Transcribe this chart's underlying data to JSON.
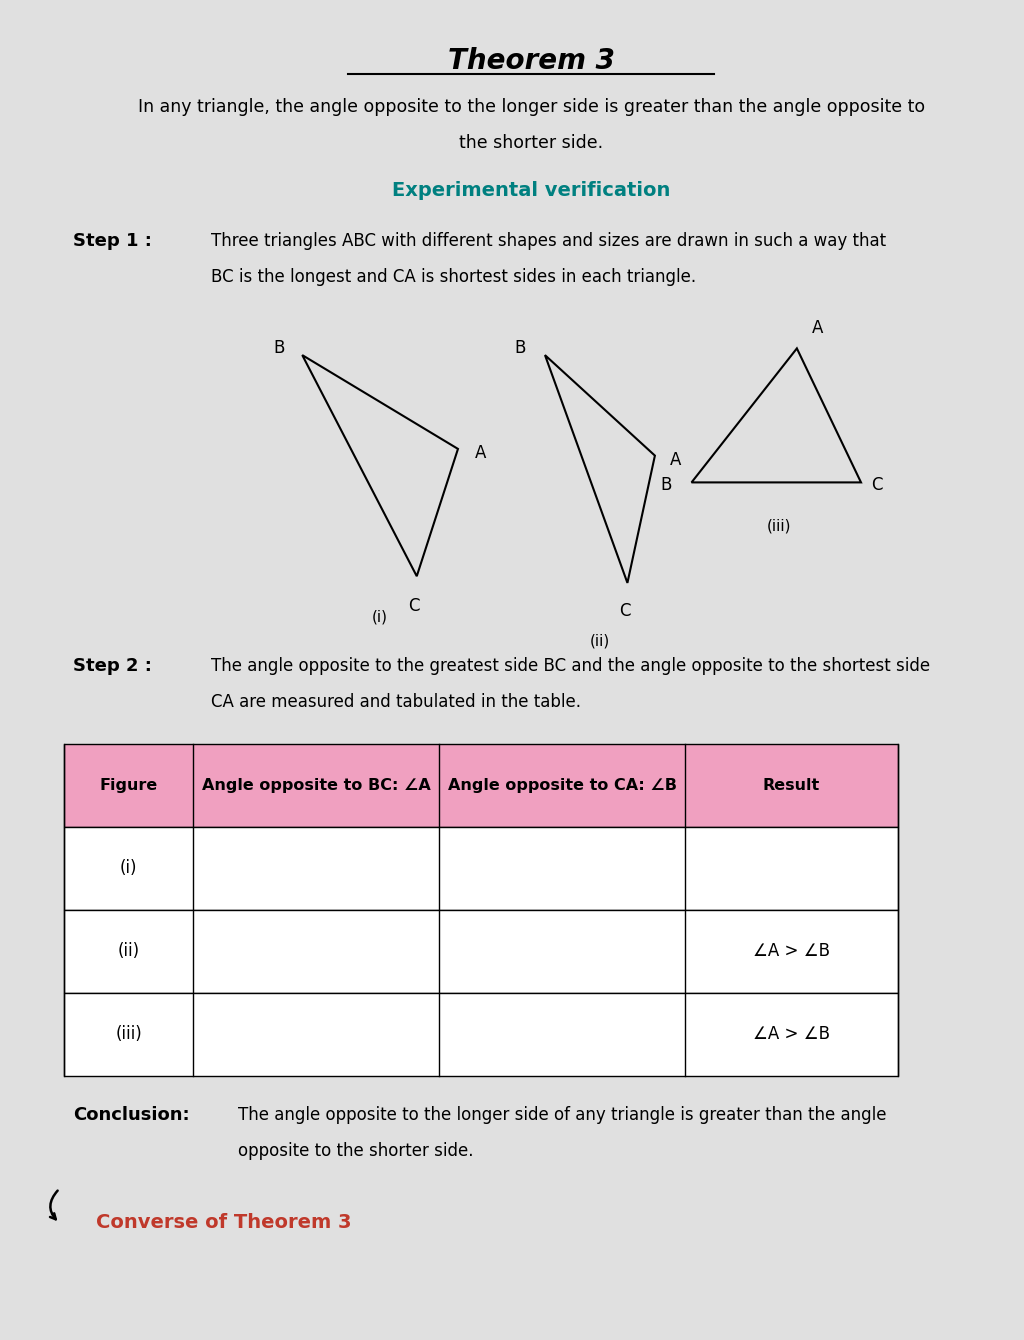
{
  "title": "Theorem 3",
  "theorem_text_line1": "In any triangle, the angle opposite to the longer side is greater than the angle opposite to",
  "theorem_text_line2": "the shorter side.",
  "exp_verification_label": "Experimental verification",
  "step1_label": "Step 1 :",
  "step1_line1": "Three triangles ABC with different shapes and sizes are drawn in such a way that",
  "step1_line2": "BC is the longest and CA is shortest sides in each triangle.",
  "step2_label": "Step 2 :",
  "step2_line1": "The angle opposite to the greatest side BC and the angle opposite to the shortest side",
  "step2_line2": "CA are measured and tabulated in the table.",
  "table_headers": [
    "Figure",
    "Angle opposite to BC: ∠A",
    "Angle opposite to CA: ∠B",
    "Result"
  ],
  "row_labels": [
    "(i)",
    "(ii)",
    "(iii)"
  ],
  "row_results": [
    "",
    "∠A > ∠B",
    "∠A > ∠B"
  ],
  "conclusion_label": "Conclusion:",
  "conclusion_line1": "The angle opposite to the longer side of any triangle is greater than the angle",
  "conclusion_line2": "opposite to the shorter side.",
  "converse_label": "Converse of Theorem 3",
  "bg_color": "#e0e0e0",
  "table_header_bg": "#f0a0c0",
  "table_row_bg": "#ffffff"
}
